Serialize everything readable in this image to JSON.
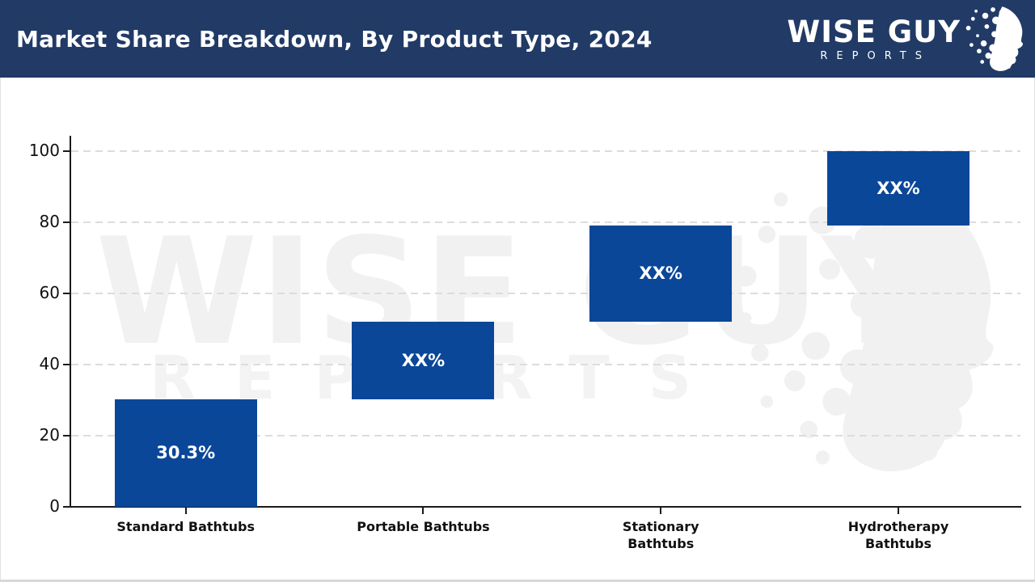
{
  "header": {
    "title": "Market Share Breakdown, By Product Type, 2024",
    "logo": {
      "line1": "WISE GUY",
      "line2": "REPORTS"
    }
  },
  "watermark": {
    "line1": "WISE GUY",
    "line2": "REPORTS"
  },
  "colors": {
    "header_bg": "#213a66",
    "bar": "#0a4799",
    "axis": "#1a1a1a",
    "grid": "#dcdcdc",
    "bar_label": "#ffffff",
    "watermark": "#f1f1f1"
  },
  "chart_data": {
    "type": "bar",
    "variant": "waterfall",
    "title": "Market Share Breakdown, By Product Type, 2024",
    "categories": [
      "Standard Bathtubs",
      "Portable Bathtubs",
      "Stationary Bathtubs",
      "Hydrotherapy Bathtubs"
    ],
    "category_label_lines": [
      [
        "Standard Bathtubs"
      ],
      [
        "Portable Bathtubs"
      ],
      [
        "Stationary",
        "Bathtubs"
      ],
      [
        "Hydrotherapy",
        "Bathtubs"
      ]
    ],
    "segments": [
      {
        "category": "Standard Bathtubs",
        "start": 0,
        "end": 30.3,
        "label": "30.3%"
      },
      {
        "category": "Portable Bathtubs",
        "start": 30.3,
        "end": 52.0,
        "label": "XX%"
      },
      {
        "category": "Stationary Bathtubs",
        "start": 52.0,
        "end": 79.2,
        "label": "XX%"
      },
      {
        "category": "Hydrotherapy Bathtubs",
        "start": 79.2,
        "end": 100,
        "label": "XX%"
      }
    ],
    "xlabel": "",
    "ylabel": "",
    "ylim": [
      0,
      100
    ],
    "yticks": [
      0,
      20,
      40,
      60,
      80,
      100
    ],
    "grid": "horizontal-dashed",
    "legend": "none",
    "bar_color": "#0a4799",
    "bar_label_color": "#ffffff"
  }
}
